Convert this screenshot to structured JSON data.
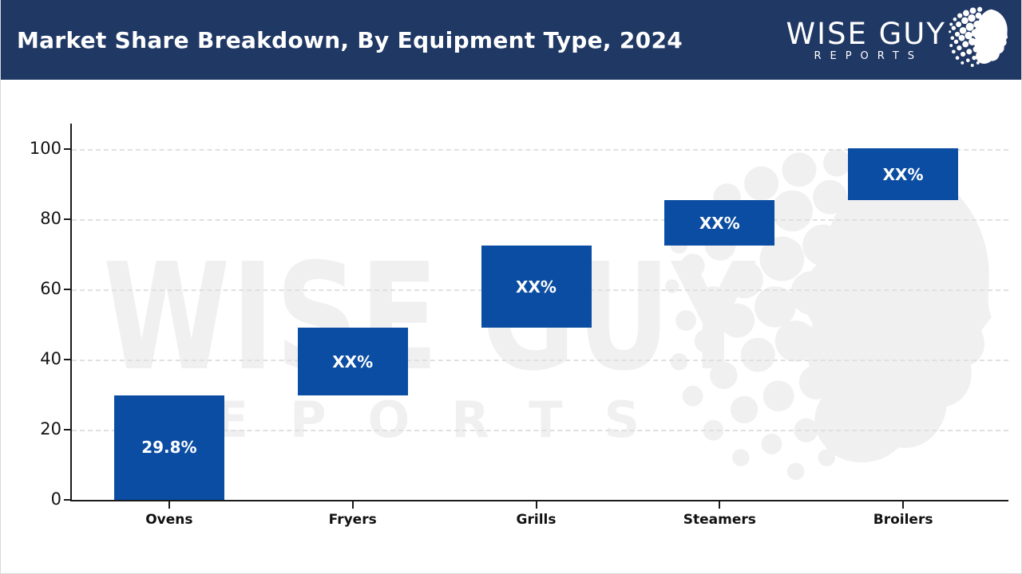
{
  "header": {
    "title": "Market Share Breakdown, By Equipment Type, 2024",
    "logo": {
      "line1": "WISE GUY",
      "line2": "REPORTS"
    }
  },
  "watermark": {
    "line1": "WISE GUY",
    "line2": "REPORTS"
  },
  "colors": {
    "header_bg": "#203864",
    "bar": "#0b4da2",
    "grid": "#e0e0e0",
    "axis": "#1a1a1a",
    "watermark": "#f0f0f1",
    "bar_label_text": "#ffffff"
  },
  "chart_data": {
    "type": "bar",
    "subtype": "waterfall",
    "title": "Market Share Breakdown, By Equipment Type, 2024",
    "xlabel": "",
    "ylabel": "",
    "categories": [
      "Ovens",
      "Fryers",
      "Grills",
      "Steamers",
      "Broilers"
    ],
    "segments": [
      {
        "category": "Ovens",
        "start": 0,
        "end": 29.8,
        "label": "29.8%"
      },
      {
        "category": "Fryers",
        "start": 29.8,
        "end": 49.0,
        "label": "XX%"
      },
      {
        "category": "Grills",
        "start": 49.0,
        "end": 72.5,
        "label": "XX%"
      },
      {
        "category": "Steamers",
        "start": 72.5,
        "end": 85.4,
        "label": "XX%"
      },
      {
        "category": "Broilers",
        "start": 85.4,
        "end": 100.2,
        "label": "XX%"
      }
    ],
    "yticks": [
      0,
      20,
      40,
      60,
      80,
      100
    ],
    "ylim": [
      0,
      107
    ],
    "grid": "horizontal-dashed",
    "legend": "none"
  }
}
